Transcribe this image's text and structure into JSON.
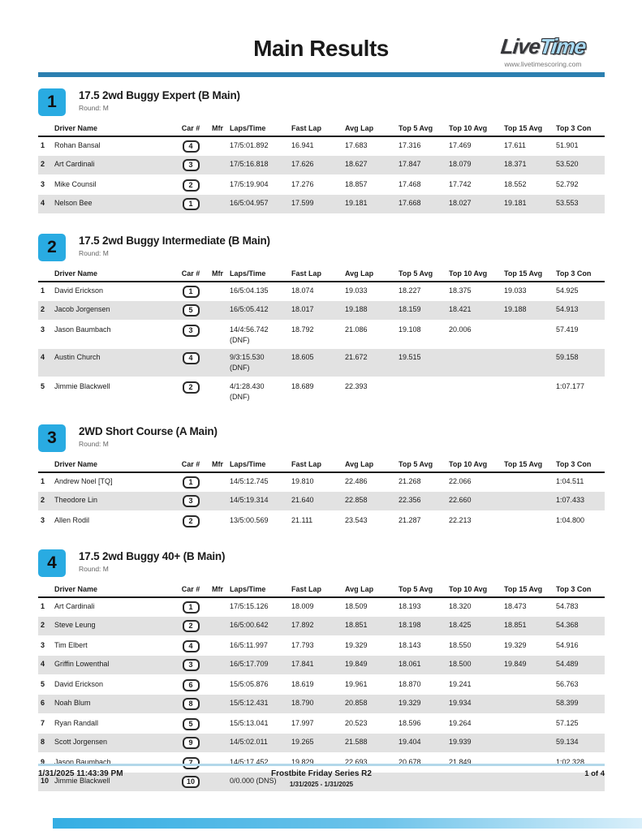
{
  "page": {
    "title": "Main Results"
  },
  "logo": {
    "live": "Live",
    "time": "Time",
    "url": "www.livetimescoring.com"
  },
  "columns": [
    "Driver Name",
    "Car #",
    "Mfr",
    "Laps/Time",
    "Fast Lap",
    "Avg Lap",
    "Top 5 Avg",
    "Top 10 Avg",
    "Top 15 Avg",
    "Top 3 Con"
  ],
  "sections": [
    {
      "number": "1",
      "title": "17.5 2wd Buggy Expert (B Main)",
      "round_label": "Round: M",
      "rows": [
        {
          "pos": "1",
          "driver": "Rohan Bansal",
          "car": "4",
          "mfr": "",
          "laps_time": "17/5:01.892",
          "fast": "16.941",
          "avg": "17.683",
          "top5": "17.316",
          "top10": "17.469",
          "top15": "17.611",
          "top3": "51.901"
        },
        {
          "pos": "2",
          "driver": "Art Cardinali",
          "car": "3",
          "mfr": "",
          "laps_time": "17/5:16.818",
          "fast": "17.626",
          "avg": "18.627",
          "top5": "17.847",
          "top10": "18.079",
          "top15": "18.371",
          "top3": "53.520"
        },
        {
          "pos": "3",
          "driver": "Mike Counsil",
          "car": "2",
          "mfr": "",
          "laps_time": "17/5:19.904",
          "fast": "17.276",
          "avg": "18.857",
          "top5": "17.468",
          "top10": "17.742",
          "top15": "18.552",
          "top3": "52.792"
        },
        {
          "pos": "4",
          "driver": "Nelson Bee",
          "car": "1",
          "mfr": "",
          "laps_time": "16/5:04.957",
          "fast": "17.599",
          "avg": "19.181",
          "top5": "17.668",
          "top10": "18.027",
          "top15": "19.181",
          "top3": "53.553"
        }
      ]
    },
    {
      "number": "2",
      "title": "17.5 2wd Buggy Intermediate (B Main)",
      "round_label": "Round: M",
      "rows": [
        {
          "pos": "1",
          "driver": "David Erickson",
          "car": "1",
          "mfr": "",
          "laps_time": "16/5:04.135",
          "fast": "18.074",
          "avg": "19.033",
          "top5": "18.227",
          "top10": "18.375",
          "top15": "19.033",
          "top3": "54.925"
        },
        {
          "pos": "2",
          "driver": "Jacob Jorgensen",
          "car": "5",
          "mfr": "",
          "laps_time": "16/5:05.412",
          "fast": "18.017",
          "avg": "19.188",
          "top5": "18.159",
          "top10": "18.421",
          "top15": "19.188",
          "top3": "54.913"
        },
        {
          "pos": "3",
          "driver": "Jason Baumbach",
          "car": "3",
          "mfr": "",
          "laps_time": "14/4:56.742",
          "note": "(DNF)",
          "fast": "18.792",
          "avg": "21.086",
          "top5": "19.108",
          "top10": "20.006",
          "top15": "",
          "top3": "57.419"
        },
        {
          "pos": "4",
          "driver": "Austin Church",
          "car": "4",
          "mfr": "",
          "laps_time": "9/3:15.530",
          "note": "(DNF)",
          "fast": "18.605",
          "avg": "21.672",
          "top5": "19.515",
          "top10": "",
          "top15": "",
          "top3": "59.158"
        },
        {
          "pos": "5",
          "driver": "Jimmie Blackwell",
          "car": "2",
          "mfr": "",
          "laps_time": "4/1:28.430",
          "note": "(DNF)",
          "fast": "18.689",
          "avg": "22.393",
          "top5": "",
          "top10": "",
          "top15": "",
          "top3": "1:07.177"
        }
      ]
    },
    {
      "number": "3",
      "title": "2WD Short Course (A Main)",
      "round_label": "Round: M",
      "rows": [
        {
          "pos": "1",
          "driver": "Andrew Noel [TQ]",
          "car": "1",
          "mfr": "",
          "laps_time": "14/5:12.745",
          "fast": "19.810",
          "avg": "22.486",
          "top5": "21.268",
          "top10": "22.066",
          "top15": "",
          "top3": "1:04.511"
        },
        {
          "pos": "2",
          "driver": "Theodore Lin",
          "car": "3",
          "mfr": "",
          "laps_time": "14/5:19.314",
          "fast": "21.640",
          "avg": "22.858",
          "top5": "22.356",
          "top10": "22.660",
          "top15": "",
          "top3": "1:07.433"
        },
        {
          "pos": "3",
          "driver": "Allen Rodil",
          "car": "2",
          "mfr": "",
          "laps_time": "13/5:00.569",
          "fast": "21.111",
          "avg": "23.543",
          "top5": "21.287",
          "top10": "22.213",
          "top15": "",
          "top3": "1:04.800"
        }
      ]
    },
    {
      "number": "4",
      "title": "17.5 2wd Buggy 40+ (B Main)",
      "round_label": "Round: M",
      "rows": [
        {
          "pos": "1",
          "driver": "Art Cardinali",
          "car": "1",
          "mfr": "",
          "laps_time": "17/5:15.126",
          "fast": "18.009",
          "avg": "18.509",
          "top5": "18.193",
          "top10": "18.320",
          "top15": "18.473",
          "top3": "54.783"
        },
        {
          "pos": "2",
          "driver": "Steve Leung",
          "car": "2",
          "mfr": "",
          "laps_time": "16/5:00.642",
          "fast": "17.892",
          "avg": "18.851",
          "top5": "18.198",
          "top10": "18.425",
          "top15": "18.851",
          "top3": "54.368"
        },
        {
          "pos": "3",
          "driver": "Tim Elbert",
          "car": "4",
          "mfr": "",
          "laps_time": "16/5:11.997",
          "fast": "17.793",
          "avg": "19.329",
          "top5": "18.143",
          "top10": "18.550",
          "top15": "19.329",
          "top3": "54.916"
        },
        {
          "pos": "4",
          "driver": "Griffin Lowenthal",
          "car": "3",
          "mfr": "",
          "laps_time": "16/5:17.709",
          "fast": "17.841",
          "avg": "19.849",
          "top5": "18.061",
          "top10": "18.500",
          "top15": "19.849",
          "top3": "54.489"
        },
        {
          "pos": "5",
          "driver": "David Erickson",
          "car": "6",
          "mfr": "",
          "laps_time": "15/5:05.876",
          "fast": "18.619",
          "avg": "19.961",
          "top5": "18.870",
          "top10": "19.241",
          "top15": "",
          "top3": "56.763"
        },
        {
          "pos": "6",
          "driver": "Noah Blum",
          "car": "8",
          "mfr": "",
          "laps_time": "15/5:12.431",
          "fast": "18.790",
          "avg": "20.858",
          "top5": "19.329",
          "top10": "19.934",
          "top15": "",
          "top3": "58.399"
        },
        {
          "pos": "7",
          "driver": "Ryan Randall",
          "car": "5",
          "mfr": "",
          "laps_time": "15/5:13.041",
          "fast": "17.997",
          "avg": "20.523",
          "top5": "18.596",
          "top10": "19.264",
          "top15": "",
          "top3": "57.125"
        },
        {
          "pos": "8",
          "driver": "Scott Jorgensen",
          "car": "9",
          "mfr": "",
          "laps_time": "14/5:02.011",
          "fast": "19.265",
          "avg": "21.588",
          "top5": "19.404",
          "top10": "19.939",
          "top15": "",
          "top3": "59.134"
        },
        {
          "pos": "9",
          "driver": "Jason Baumbach",
          "car": "7",
          "mfr": "",
          "laps_time": "14/5:17.452",
          "fast": "19.829",
          "avg": "22.693",
          "top5": "20.678",
          "top10": "21.849",
          "top15": "",
          "top3": "1:02.328"
        },
        {
          "pos": "10",
          "driver": "Jimmie Blackwell",
          "car": "10",
          "mfr": "",
          "laps_time": "0/0.000 (DNS)",
          "fast": "",
          "avg": "",
          "top5": "",
          "top10": "",
          "top15": "",
          "top3": ""
        }
      ]
    }
  ],
  "footer": {
    "printed": "1/31/2025 11:43:39 PM",
    "event": "Frostbite Friday Series R2",
    "dates": "1/31/2025 - 1/31/2025",
    "page": "1 of 4"
  }
}
